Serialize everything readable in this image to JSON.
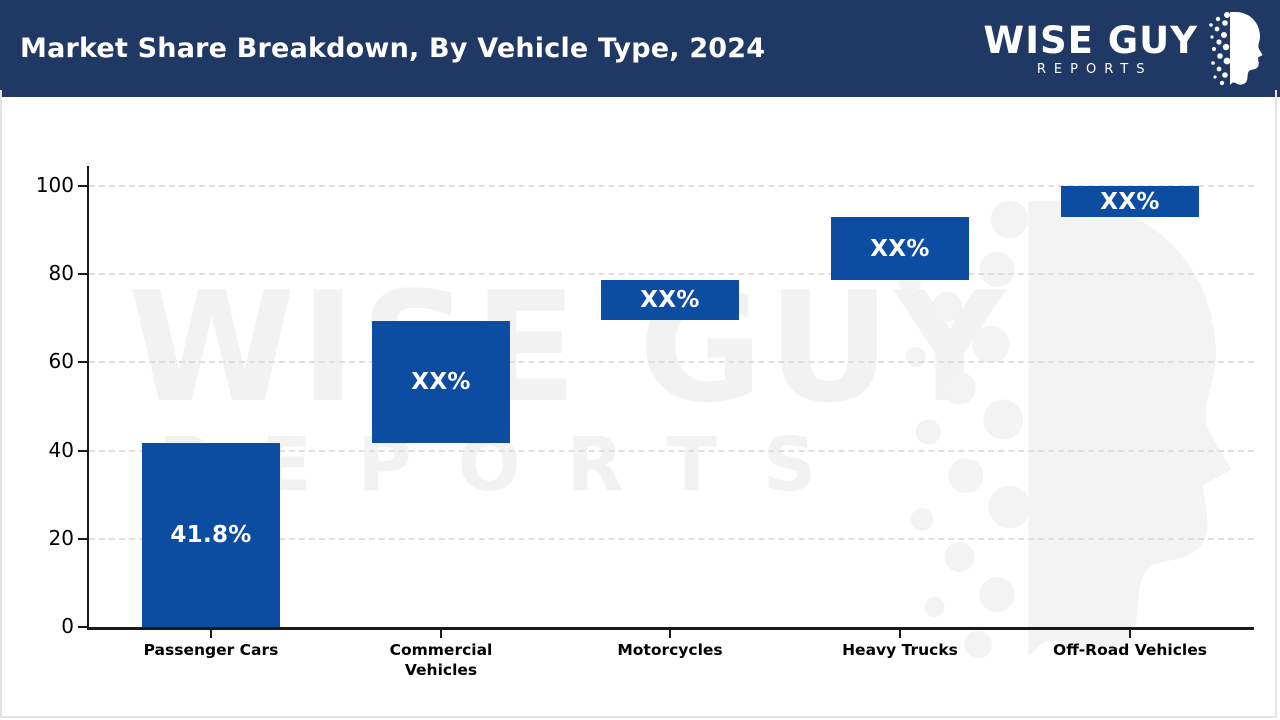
{
  "header": {
    "title": "Market Share Breakdown, By Vehicle Type, 2024",
    "logo": {
      "line1": "WISE GUY",
      "line2": "REPORTS",
      "icon": "face-profile-dots-icon"
    }
  },
  "watermark": {
    "line1": "WISE GUY",
    "line2": "REPORTS",
    "icon": "face-profile-dots-icon"
  },
  "colors": {
    "header_bg": "#1f3864",
    "bar_blue": "#0c4da2",
    "bar_label_text": "#ffffff",
    "axis": "#1a1a1a",
    "grid": "#dfdfdf",
    "watermark": "#f2f2f2"
  },
  "chart_data": {
    "type": "bar",
    "subtype": "waterfall",
    "title": "Market Share Breakdown, By Vehicle Type, 2024",
    "unit": "%",
    "categories": [
      "Passenger Cars",
      "Commercial\nVehicles",
      "Motorcycles",
      "Heavy Trucks",
      "Off-Road Vehicles"
    ],
    "segments": [
      {
        "category": "Passenger Cars",
        "start": 0,
        "end": 41.8,
        "value": 41.8,
        "label": "41.8%"
      },
      {
        "category": "Commercial Vehicles",
        "start": 41.8,
        "end": 69.5,
        "value": 27.7,
        "label": "XX%"
      },
      {
        "category": "Motorcycles",
        "start": 69.5,
        "end": 78.7,
        "value": 9.2,
        "label": "XX%"
      },
      {
        "category": "Heavy Trucks",
        "start": 78.7,
        "end": 92.9,
        "value": 14.2,
        "label": "XX%"
      },
      {
        "category": "Off-Road Vehicles",
        "start": 92.9,
        "end": 100,
        "value": 7.1,
        "label": "XX%"
      }
    ],
    "yticks": [
      0,
      20,
      40,
      60,
      80,
      100
    ],
    "ylim": [
      0,
      104
    ],
    "xlabel": "",
    "ylabel": "",
    "grid": "dashed-horizontal",
    "legend": null
  }
}
